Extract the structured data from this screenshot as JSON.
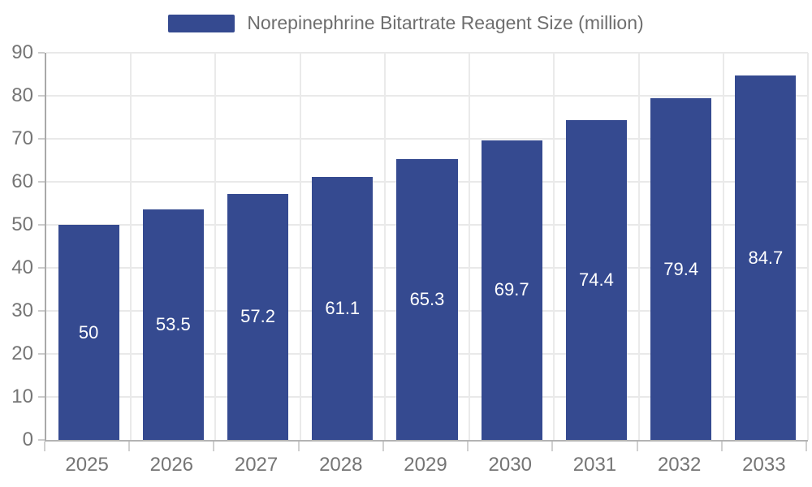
{
  "legend": {
    "label": "Norepinephrine Bitartrate Reagent Size (million)",
    "swatch_color": "#354A90"
  },
  "colors": {
    "bar": "#354A90",
    "value_label": "#ffffff",
    "axis_label": "#757575",
    "legend_text": "#6e6e6e",
    "gridline": "#e9e9e9",
    "y_axis_line": "#a9a9a9",
    "x_axis_line": "#b3b3b3"
  },
  "chart_data": {
    "type": "bar",
    "title": "Norepinephrine Bitartrate Reagent Size (million)",
    "categories": [
      "2025",
      "2026",
      "2027",
      "2028",
      "2029",
      "2030",
      "2031",
      "2032",
      "2033"
    ],
    "series": [
      {
        "name": "Norepinephrine Bitartrate Reagent Size (million)",
        "values": [
          50,
          53.5,
          57.2,
          61.1,
          65.3,
          69.7,
          74.4,
          79.4,
          84.7
        ]
      }
    ],
    "value_labels": [
      "50",
      "53.5",
      "57.2",
      "61.1",
      "65.3",
      "69.7",
      "74.4",
      "79.4",
      "84.7"
    ],
    "xlabel": "",
    "ylabel": "",
    "ylim": [
      0,
      90
    ],
    "yticks": [
      0,
      10,
      20,
      30,
      40,
      50,
      60,
      70,
      80,
      90
    ],
    "grid": true,
    "legend_position": "top",
    "bar_band_fraction": 0.72
  }
}
